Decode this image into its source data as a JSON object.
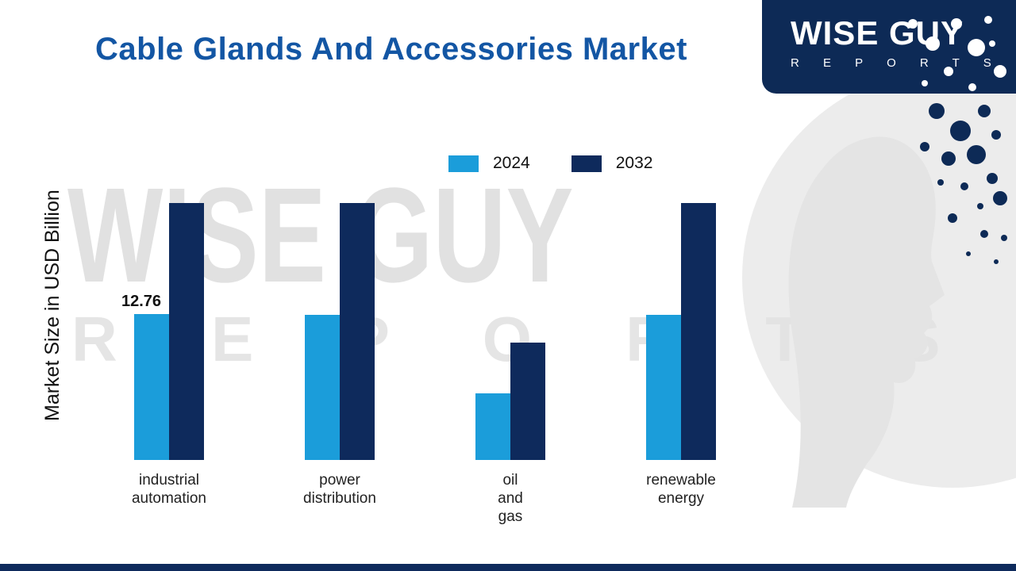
{
  "title": "Cable Glands And Accessories Market",
  "y_axis_label": "Market Size in USD Billion",
  "legend": {
    "items": [
      {
        "label": "2024"
      },
      {
        "label": "2032"
      }
    ]
  },
  "watermark": {
    "line1": "WISE GUY",
    "line2": "R E P O R T S"
  },
  "logo": {
    "title": "WISE GUY",
    "subtitle": "R E P O R T S"
  },
  "colors": {
    "title": "#1356a4",
    "accent_blue": "#1b9dda",
    "accent_navy": "#0e2a5c",
    "logo_bg": "#0d2a56",
    "footer": "#0e2a5c"
  },
  "chart_data": {
    "type": "bar",
    "title": "Cable Glands And Accessories Market",
    "xlabel": "",
    "ylabel": "Market Size in USD Billion",
    "ylim": [
      0,
      25
    ],
    "grid": false,
    "legend_position": "top",
    "categories": [
      [
        "industrial",
        "automation"
      ],
      [
        "power",
        "distribution"
      ],
      [
        "oil",
        "and",
        "gas"
      ],
      [
        "renewable",
        "energy"
      ]
    ],
    "series": [
      {
        "name": "2024",
        "color": "#1b9dda",
        "values": [
          12.76,
          12.7,
          5.8,
          12.7
        ]
      },
      {
        "name": "2032",
        "color": "#0e2a5c",
        "values": [
          22.5,
          22.5,
          10.3,
          22.5
        ]
      }
    ],
    "annotations": [
      {
        "text": "12.76",
        "category_index": 0,
        "series_index": 0
      }
    ]
  }
}
